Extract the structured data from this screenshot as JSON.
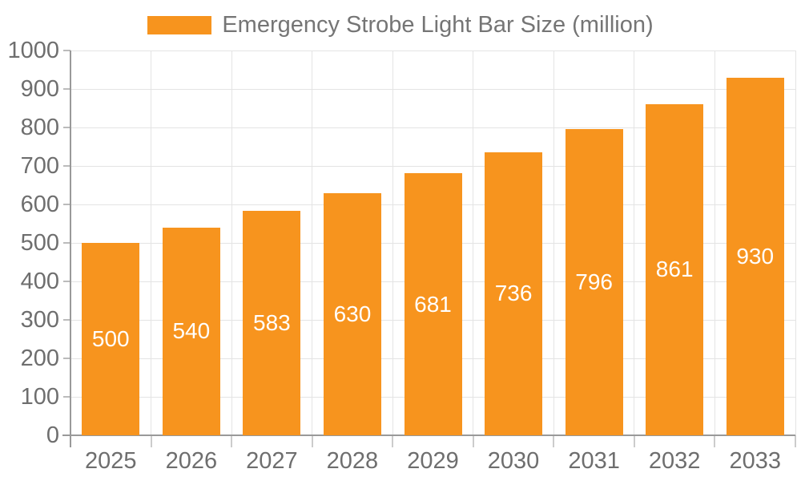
{
  "legend": {
    "label": "Emergency Strobe Light Bar Size (million)"
  },
  "colors": {
    "bar": "#F7941E",
    "bar_label": "#FFFFFF",
    "axis_line": "#999999",
    "y_tick": "#BBBBBB",
    "x_tick": "#CCCCCC",
    "grid": "#E4E4E4",
    "axis_text": "#6E6E6E",
    "legend_text": "#757575",
    "background": "#FFFFFF"
  },
  "chart_data": {
    "type": "bar",
    "title": "Emergency Strobe Light Bar Size (million)",
    "categories": [
      "2025",
      "2026",
      "2027",
      "2028",
      "2029",
      "2030",
      "2031",
      "2032",
      "2033"
    ],
    "series": [
      {
        "name": "Emergency Strobe Light Bar Size (million)",
        "values": [
          500,
          540,
          583,
          630,
          681,
          736,
          796,
          861,
          930
        ]
      }
    ],
    "xlabel": "",
    "ylabel": "",
    "ylim": [
      0,
      1000
    ],
    "yticks": [
      0,
      100,
      200,
      300,
      400,
      500,
      600,
      700,
      800,
      900,
      1000
    ],
    "grid": true,
    "legend_position": "top",
    "value_label_position": "inside-center"
  }
}
